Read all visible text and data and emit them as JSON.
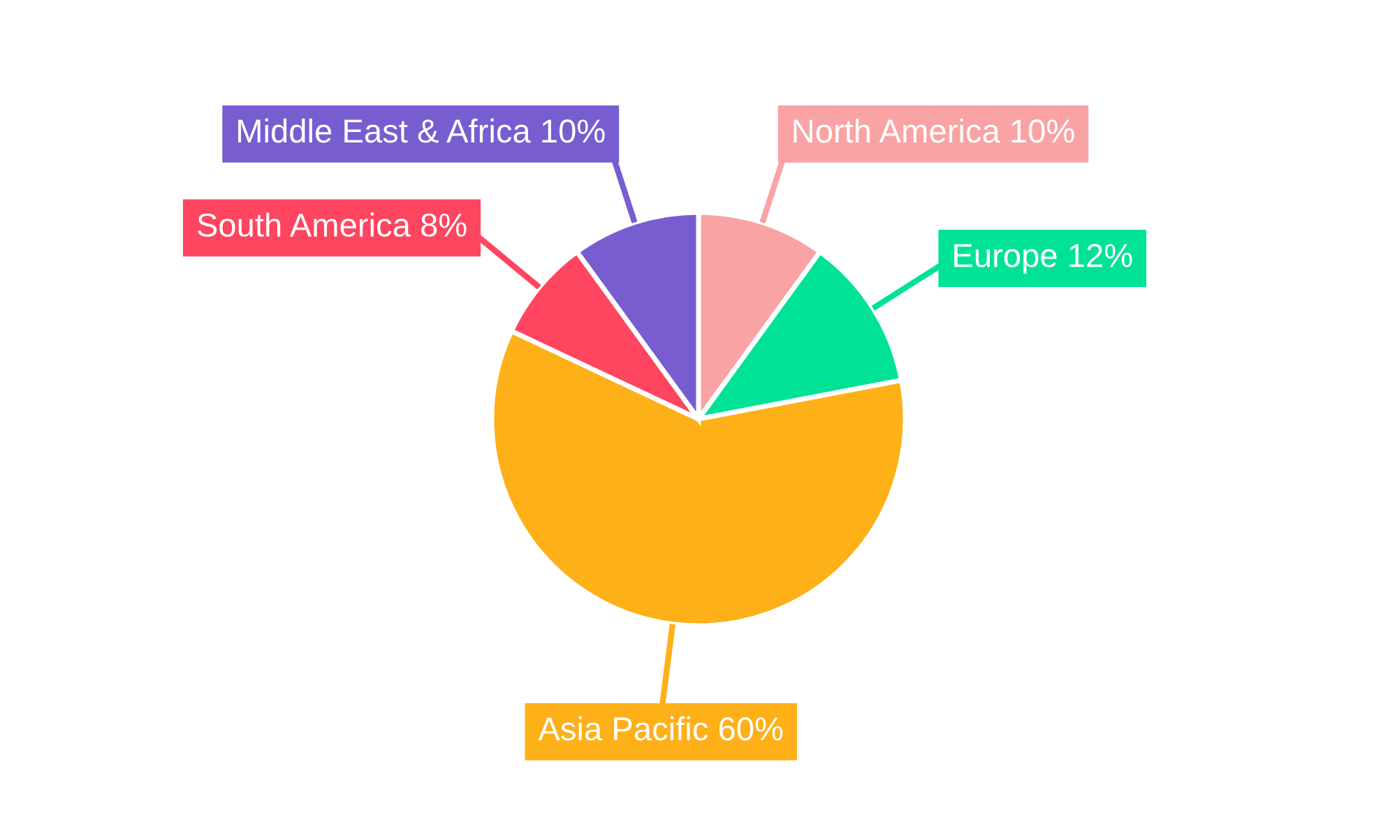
{
  "chart_data": {
    "type": "pie",
    "categories": [
      "North America",
      "Europe",
      "Asia Pacific",
      "South America",
      "Middle East & Africa"
    ],
    "values": [
      10,
      12,
      60,
      8,
      10
    ],
    "value_labels": [
      "10%",
      "12%",
      "60%",
      "8%",
      "10%"
    ],
    "colors": [
      "#f9a3a4",
      "#00e396",
      "#feb019",
      "#ff4560",
      "#775dd0"
    ],
    "legend": false
  }
}
